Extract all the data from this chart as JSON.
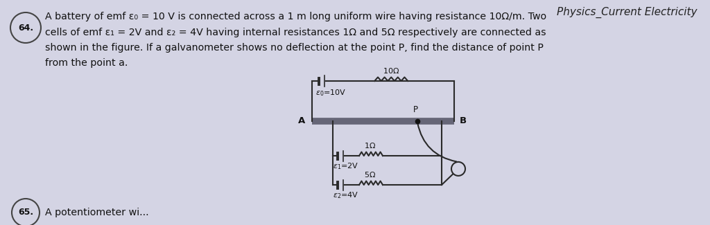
{
  "background_color": "#d4d4e4",
  "title_text": "Physics_Current Electricity",
  "title_color": "#222222",
  "title_fontsize": 11,
  "problem_text_lines": [
    "A battery of emf ε₀ = 10 V is connected across a 1 m long uniform wire having resistance 10Ω/m. Two",
    "cells of emf ε₁ = 2V and ε₂ = 4V having internal resistances 1Ω and 5Ω respectively are connected as",
    "shown in the figure. If a galvanometer shows no deflection at the point P, find the distance of point P",
    "from the point a."
  ],
  "text_color": "#111111",
  "text_fontsize": 10.2,
  "next_problem_text": "A potentiometer wi...",
  "wire_color": "#2a2a2a",
  "label_color": "#111111"
}
